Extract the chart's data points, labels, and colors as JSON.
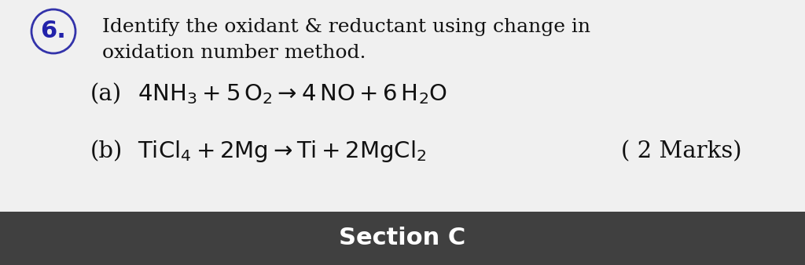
{
  "bg_color": "#d8d8d8",
  "section_bg": "#404040",
  "text_color": "#111111",
  "section_text_color": "#ffffff",
  "question_number": "6.",
  "question_text_line1": "Identify the oxidant & reductant using change in",
  "question_text_line2": "oxidation number method.",
  "part_a_label": "(a)",
  "part_a_eq": "$4\\mathrm{NH_3} + 5\\,\\mathrm{O_2} \\rightarrow 4\\,\\mathrm{NO} + 6\\,\\mathrm{H_2O}$",
  "part_b_label": "(b)",
  "part_b_eq": "$\\mathrm{TiCl_4} + 2\\mathrm{Mg} \\rightarrow \\mathrm{Ti} + 2\\mathrm{MgCl_2}$",
  "marks_text": "( 2 Marks)",
  "section_text": "Section C",
  "title_fontsize": 18,
  "eq_fontsize": 21,
  "section_fontsize": 22,
  "number_fontsize": 22
}
